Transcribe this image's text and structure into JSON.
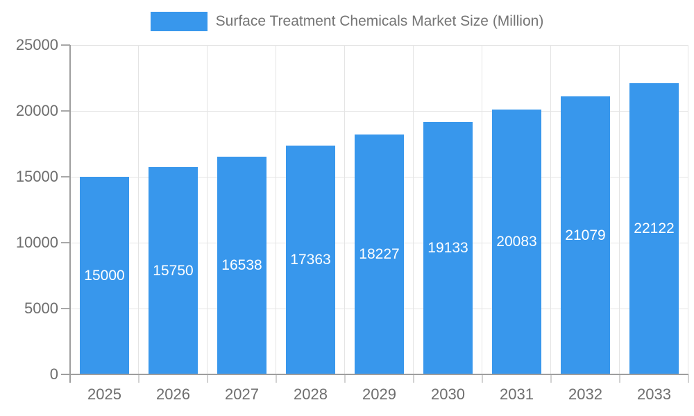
{
  "legend": {
    "series_label": "Surface Treatment Chemicals Market Size (Million)"
  },
  "colors": {
    "bar": "#3897ec",
    "value_label": "#ffffff",
    "axis_text": "#6e6e6e",
    "legend_text": "#757575",
    "gridline": "#e4e4e4",
    "axis_line": "#9e9e9e"
  },
  "chart_data": {
    "type": "bar",
    "title": "Surface Treatment Chemicals Market Size (Million)",
    "categories": [
      "2025",
      "2026",
      "2027",
      "2028",
      "2029",
      "2030",
      "2031",
      "2032",
      "2033"
    ],
    "values": [
      15000,
      15750,
      16538,
      17363,
      18227,
      19133,
      20083,
      21079,
      22122
    ],
    "value_labels": [
      "15000",
      "15750",
      "16538",
      "17363",
      "18227",
      "19133",
      "20083",
      "21079",
      "22122"
    ],
    "xlabel": "",
    "ylabel": "",
    "ylim": [
      0,
      25000
    ],
    "y_ticks": [
      0,
      5000,
      10000,
      15000,
      20000,
      25000
    ],
    "y_tick_labels": [
      "0",
      "5000",
      "10000",
      "15000",
      "20000",
      "25000"
    ],
    "grid": true,
    "legend_position": "top"
  }
}
